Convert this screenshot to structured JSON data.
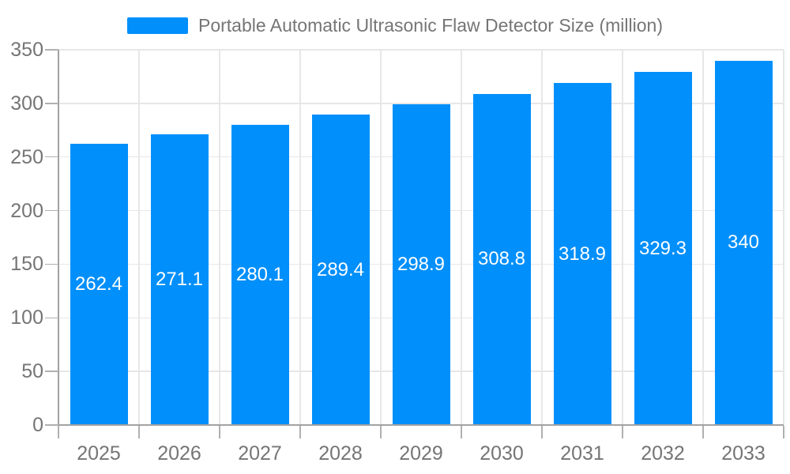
{
  "chart_data": {
    "type": "bar",
    "title": "Portable Automatic Ultrasonic Flaw Detector Size (million)",
    "categories": [
      "2025",
      "2026",
      "2027",
      "2028",
      "2029",
      "2030",
      "2031",
      "2032",
      "2033"
    ],
    "values": [
      262.4,
      271.1,
      280.1,
      289.4,
      298.9,
      308.8,
      318.9,
      329.3,
      340
    ],
    "value_labels": [
      "262.4",
      "271.1",
      "280.1",
      "289.4",
      "298.9",
      "308.8",
      "318.9",
      "329.3",
      "340"
    ],
    "xlabel": "",
    "ylabel": "",
    "ylim": [
      0,
      350
    ],
    "yticks": [
      0,
      50,
      100,
      150,
      200,
      250,
      300,
      350
    ],
    "ytick_labels": [
      "0",
      "50",
      "100",
      "150",
      "200",
      "250",
      "300",
      "350"
    ],
    "grid": true,
    "legend_position": "top",
    "colors": {
      "bar": "#008FFB",
      "bar_label": "#ffffff",
      "axis_text": "#757575",
      "grid_line": "#e7e7e7",
      "axis_line": "#a2a2a2",
      "tick_line": "#b0b0b0"
    }
  }
}
